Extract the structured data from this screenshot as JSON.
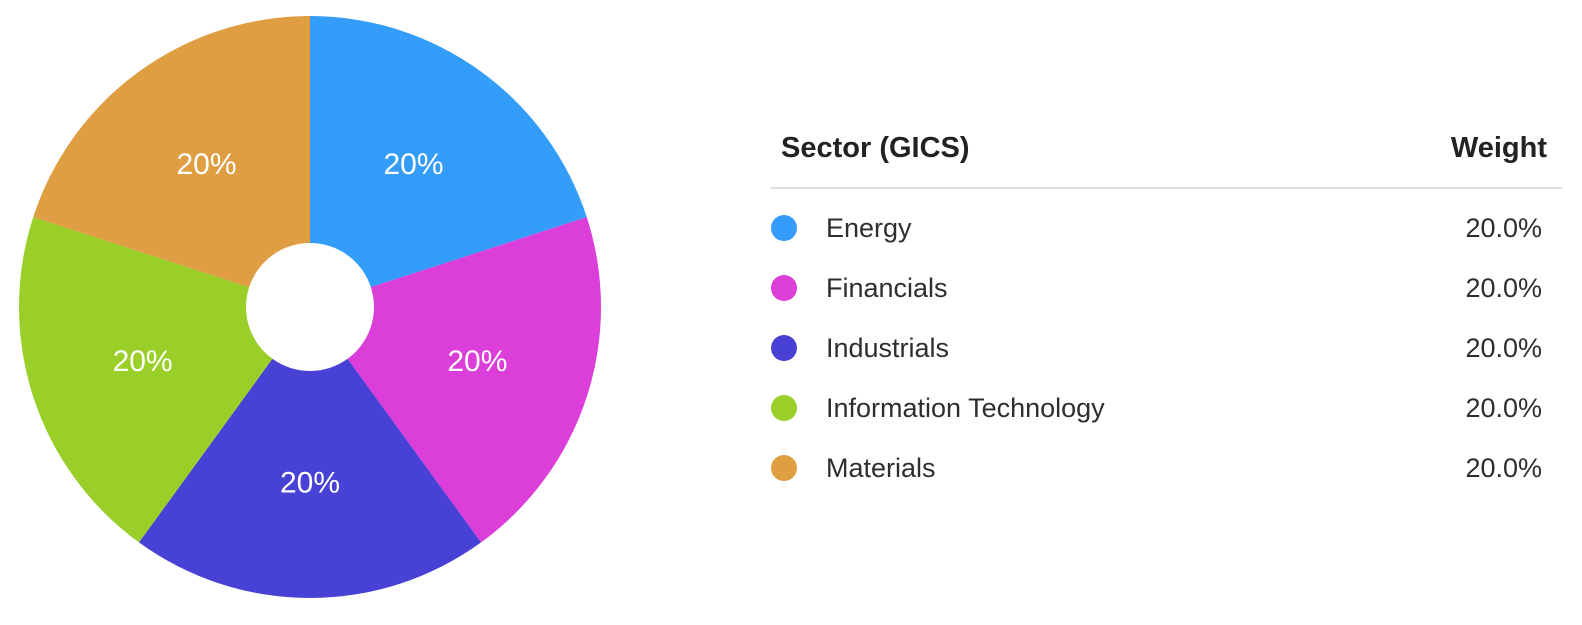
{
  "chart_data": {
    "type": "pie",
    "subtype": "donut",
    "title": "",
    "direction": "clockwise",
    "start_angle_deg": 0,
    "categories": [
      "Energy",
      "Financials",
      "Industrials",
      "Information Technology",
      "Materials"
    ],
    "values": [
      20,
      20,
      20,
      20,
      20
    ],
    "slice_labels": [
      "20%",
      "20%",
      "20%",
      "20%",
      "20%"
    ],
    "colors": [
      "#349CF9",
      "#DC3ED9",
      "#4841D6",
      "#9ACF2A",
      "#E09E42"
    ],
    "slice_label_color": "#ffffff",
    "legend_position": "right-table"
  },
  "table": {
    "header": {
      "sector": "Sector (GICS)",
      "weight": "Weight"
    },
    "rows": [
      {
        "id": "energy",
        "sector": "Energy",
        "weight": "20.0%",
        "color": "#349CF9"
      },
      {
        "id": "financials",
        "sector": "Financials",
        "weight": "20.0%",
        "color": "#DC3ED9"
      },
      {
        "id": "industrials",
        "sector": "Industrials",
        "weight": "20.0%",
        "color": "#4841D6"
      },
      {
        "id": "information-technology",
        "sector": "Information Technology",
        "weight": "20.0%",
        "color": "#9ACF2A"
      },
      {
        "id": "materials",
        "sector": "Materials",
        "weight": "20.0%",
        "color": "#E09E42"
      }
    ]
  },
  "colors": {
    "background": "#ffffff",
    "header_text": "#222222",
    "row_text": "#2e2e2e",
    "divider": "#dddddd"
  }
}
